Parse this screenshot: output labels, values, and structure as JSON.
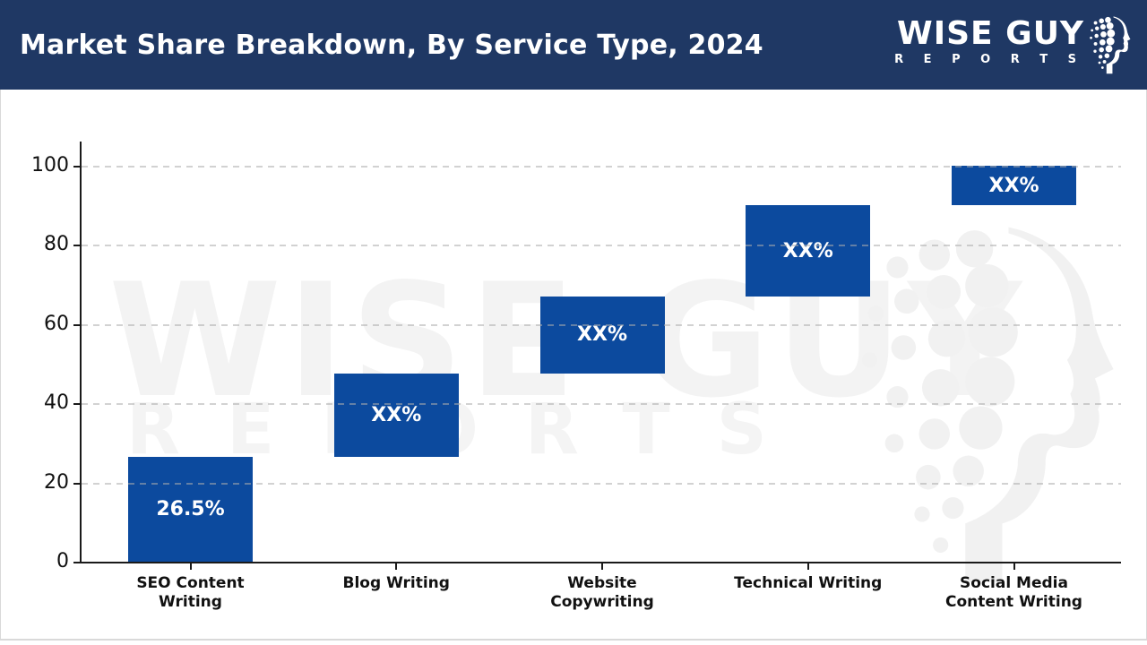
{
  "header": {
    "title": "Market Share Breakdown, By Service Type, 2024",
    "logo": {
      "name": "WISE GUY",
      "sub": "R E P O R T S"
    }
  },
  "watermark": {
    "name": "WISE GUY",
    "sub": "REPORTS"
  },
  "chart_data": {
    "type": "bar",
    "subtype": "waterfall-floating-segments",
    "title": "Market Share Breakdown, By Service Type, 2024",
    "xlabel": "",
    "ylabel": "",
    "ylim": [
      0,
      107
    ],
    "yticks": [
      0,
      20,
      40,
      60,
      80,
      100
    ],
    "grid": "horizontal-dashed",
    "legend": "none",
    "bar_color": "#0C4A9E",
    "categories": [
      "SEO Content\nWriting",
      "Blog Writing",
      "Website\nCopywriting",
      "Technical Writing",
      "Social Media\nContent Writing"
    ],
    "segments": [
      {
        "category": "SEO Content Writing",
        "start": 0,
        "end": 26.5,
        "label": "26.5%"
      },
      {
        "category": "Blog Writing",
        "start": 26.5,
        "end": 47.5,
        "label": "XX%"
      },
      {
        "category": "Website Copywriting",
        "start": 47.5,
        "end": 67,
        "label": "XX%"
      },
      {
        "category": "Technical Writing",
        "start": 67,
        "end": 90,
        "label": "XX%"
      },
      {
        "category": "Social Media Content Writing",
        "start": 90,
        "end": 100,
        "label": "XX%"
      }
    ]
  },
  "colors": {
    "header_bg": "#1F3864",
    "bar": "#0C4A9E",
    "axis": "#1a1a1a",
    "gridline": "#d9d9d9",
    "watermark": "#f3f3f3",
    "frame_border": "#d9d9d9",
    "title_text": "#ffffff",
    "bar_label_text": "#ffffff"
  }
}
